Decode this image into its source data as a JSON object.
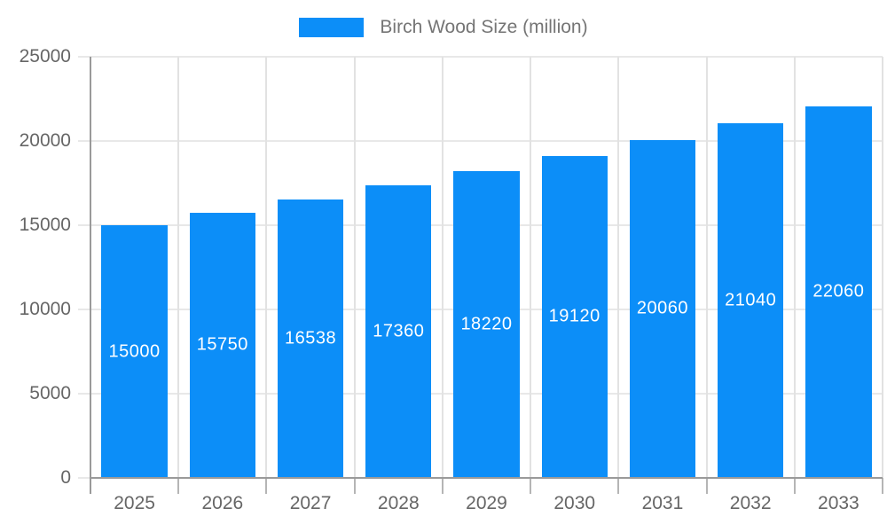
{
  "chart_data": {
    "type": "bar",
    "title": "Birch Wood Size (million)",
    "legend_label": "Birch Wood Size (million)",
    "categories": [
      "2025",
      "2026",
      "2027",
      "2028",
      "2029",
      "2030",
      "2031",
      "2032",
      "2033"
    ],
    "values": [
      15000,
      15750,
      16538,
      17360,
      18220,
      19120,
      20060,
      21040,
      22060
    ],
    "value_labels": [
      "15000",
      "15750",
      "16538",
      "17360",
      "18220",
      "19120",
      "20060",
      "21040",
      "22060"
    ],
    "xlabel": "",
    "ylabel": "",
    "ylim": [
      0,
      25000
    ],
    "ytick_step": 5000,
    "ytick_labels": [
      "0",
      "5000",
      "10000",
      "15000",
      "20000",
      "25000"
    ],
    "grid": true,
    "legend_position": "top",
    "bar_color": "#0C8EF8",
    "value_label_color": "#ffffff",
    "axis_text_color": "#666666",
    "legend_text_color": "#757575",
    "gridline_color": "#e8e8e8",
    "vertical_gridline_color": "#e2e2e2",
    "axis_line_color": "#9a9a9a",
    "tick_color": "#b5b5b5"
  }
}
